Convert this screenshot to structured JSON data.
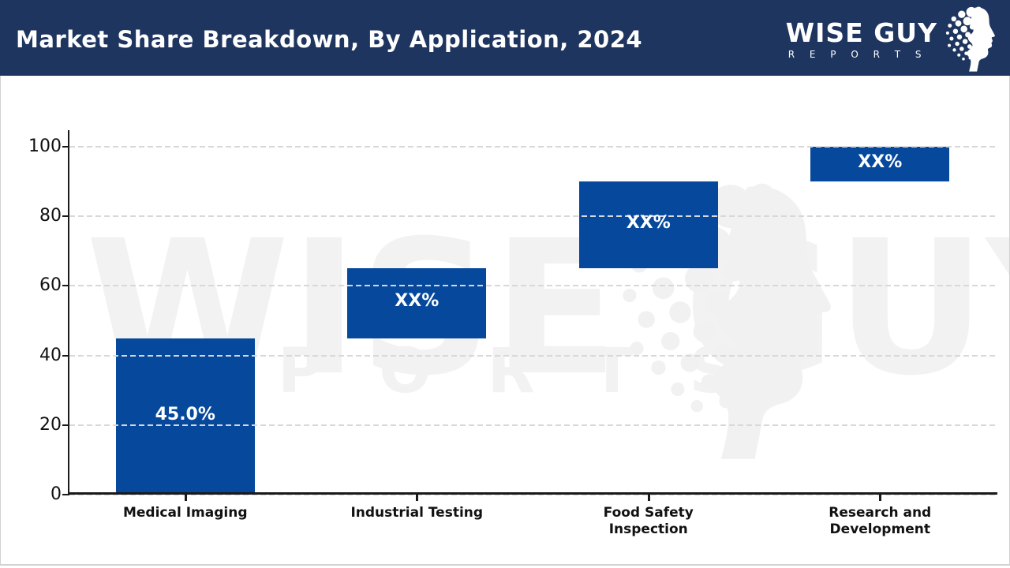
{
  "header": {
    "title": "Market Share Breakdown, By Application, 2024",
    "bg_color": "#1e355f",
    "logo": {
      "wordmark": "WISE GUY",
      "subtext": "R E P O R T S",
      "face_icon": "dotted-head-profile"
    }
  },
  "watermark": {
    "line1": "WISE GUY",
    "line2": "P O R T S",
    "face_icon": "dotted-head-profile",
    "color": "#f2f2f3"
  },
  "chart_data": {
    "type": "bar",
    "subtype": "waterfall",
    "title": "Market Share Breakdown, By Application, 2024",
    "xlabel": "",
    "ylabel": "",
    "ylim": [
      0,
      100
    ],
    "yticks": [
      0,
      20,
      40,
      60,
      80,
      100
    ],
    "grid": true,
    "grid_style": "dashed",
    "grid_color": "#d8d8d8",
    "axis_color": "#1a1a1a",
    "bar_color": "#05489c",
    "label_color": "#ffffff",
    "legend": null,
    "categories": [
      "Medical Imaging",
      "Industrial Testing",
      "Food Safety\nInspection",
      "Research and\nDevelopment"
    ],
    "bars": [
      {
        "category": "Medical Imaging",
        "start": 0,
        "end": 45,
        "segment_value": 45,
        "value_label": "45.0%"
      },
      {
        "category": "Industrial Testing",
        "start": 45,
        "end": 65,
        "segment_value": 20,
        "value_label": "XX%"
      },
      {
        "category": "Food Safety\nInspection",
        "start": 65,
        "end": 90,
        "segment_value": 25,
        "value_label": "XX%"
      },
      {
        "category": "Research and\nDevelopment",
        "start": 90,
        "end": 100,
        "segment_value": 10,
        "value_label": "XX%"
      }
    ]
  }
}
